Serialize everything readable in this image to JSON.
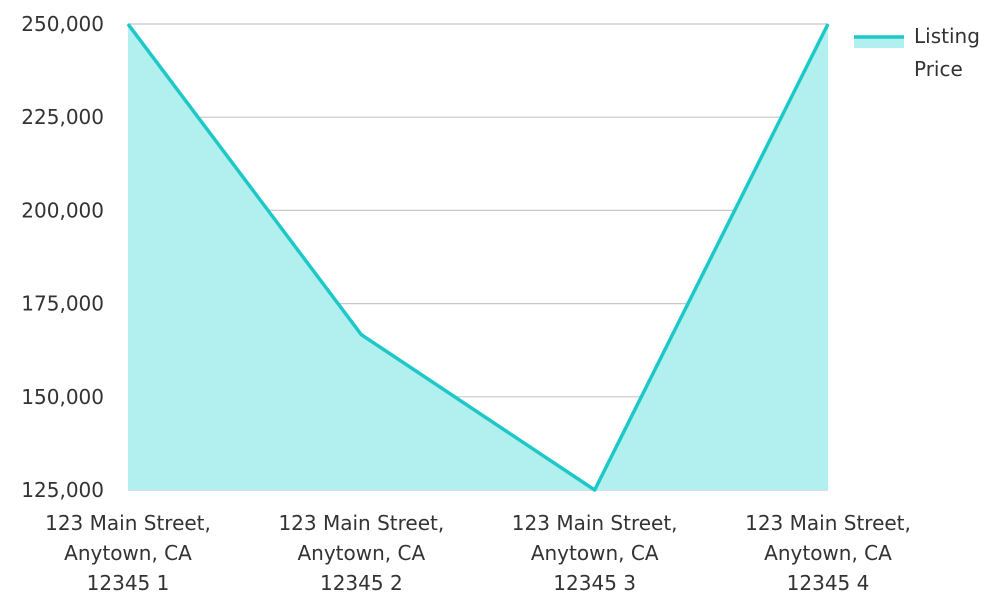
{
  "chart_data": {
    "type": "area",
    "categories": [
      [
        "123 Main Street,",
        "Anytown, CA",
        "12345 1"
      ],
      [
        "123 Main Street,",
        "Anytown, CA",
        "12345 2"
      ],
      [
        "123 Main Street,",
        "Anytown, CA",
        "12345 3"
      ],
      [
        "123 Main Street,",
        "Anytown, CA",
        "12345 4"
      ]
    ],
    "series": [
      {
        "name": "Listing Price",
        "values": [
          250000,
          166667,
          125000,
          250000
        ]
      }
    ],
    "ylim": [
      125000,
      250000
    ],
    "yticks": [
      125000,
      150000,
      175000,
      200000,
      225000,
      250000
    ],
    "ytick_labels": [
      "125,000",
      "150,000",
      "175,000",
      "200,000",
      "225,000",
      "250,000"
    ],
    "legend": {
      "position": "top-right",
      "label_lines": [
        "Listing",
        "Price"
      ]
    },
    "grid": true,
    "colors": {
      "line": "#1ec8c8",
      "fill": "#b2efef",
      "grid": "#c8c8c8",
      "text": "#333333"
    }
  }
}
